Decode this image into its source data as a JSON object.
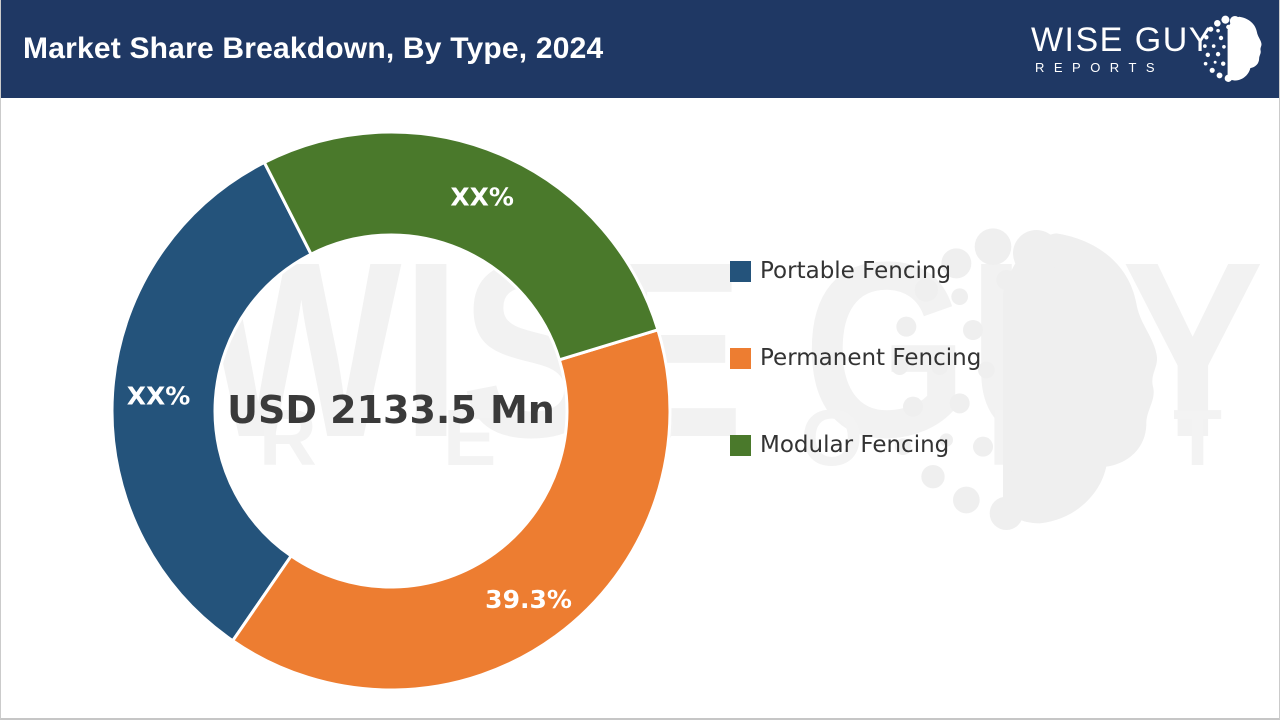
{
  "header": {
    "title": "Market Share Breakdown, By Type, 2024",
    "background": "#1F3864",
    "logo": {
      "line1": "WISE GUY",
      "line2": "REPORTS"
    }
  },
  "watermark": {
    "line1": "WISE GUY",
    "line2": "R E P O R T S"
  },
  "chart_data": {
    "type": "donut",
    "title": "Market Share Breakdown, By Type, 2024",
    "center_label": "USD 2133.5 Mn",
    "start_angle_deg": 117,
    "direction": "clockwise",
    "outer_radius": 279,
    "inner_radius": 176,
    "label_radius": 233,
    "gap_color": "#ffffff",
    "segments": [
      {
        "name": "Modular Fencing",
        "display_label": "XX%",
        "sweep_pct": 27.8,
        "color": "#4A792B"
      },
      {
        "name": "Permanent Fencing",
        "display_label": "39.3%",
        "sweep_pct": 39.3,
        "color": "#ED7D31"
      },
      {
        "name": "Portable Fencing",
        "display_label": "XX%",
        "sweep_pct": 32.9,
        "color": "#24537B"
      }
    ],
    "legend": {
      "position": "right",
      "items": [
        {
          "label": "Portable Fencing",
          "color": "#24537B"
        },
        {
          "label": "Permanent Fencing",
          "color": "#ED7D31"
        },
        {
          "label": "Modular Fencing",
          "color": "#4A792B"
        }
      ]
    },
    "colors": {
      "header_navy": "#1F3864",
      "segment_label_text": "#ffffff",
      "center_text": "#3a3a3a",
      "legend_text": "#333333",
      "watermark_gray": "#f2f2f2"
    }
  }
}
